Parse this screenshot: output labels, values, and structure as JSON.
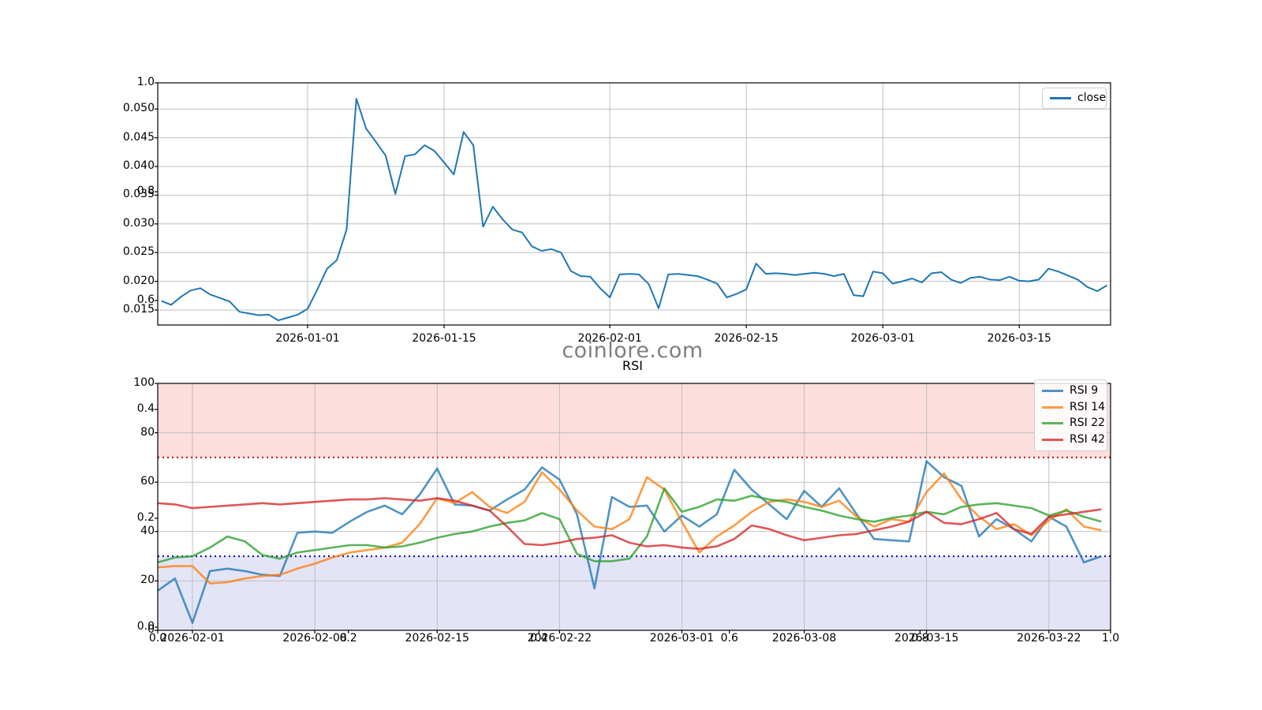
{
  "watermark": "coinlore.com",
  "grid_color": "#bfbfbf",
  "frame_color": "#000000",
  "overlay_axis": {
    "x_tick_labels": [
      "0.0",
      "0.2",
      "0.4",
      "0.6",
      "0.8",
      "1.0"
    ],
    "y_tick_labels": [
      "1.0",
      "0.8",
      "0.6",
      "0.4",
      "0.2",
      "0.0"
    ]
  },
  "chart_data": [
    {
      "type": "line",
      "name": "price",
      "title": "",
      "legend_position": "upper right",
      "grid": true,
      "ylim": [
        0.0124,
        0.0546
      ],
      "y_tick_labels": [
        "0.015",
        "0.020",
        "0.025",
        "0.030",
        "0.035",
        "0.040",
        "0.045",
        "0.050"
      ],
      "x_tick_labels": [
        "2026-01-01",
        "2026-01-15",
        "2026-02-01",
        "2026-02-15",
        "2026-03-01",
        "2026-03-15"
      ],
      "series": [
        {
          "name": "close",
          "color": "#1f77b4",
          "start_date": "2025-12-17",
          "freq": "daily",
          "values": [
            0.0166,
            0.0159,
            0.0173,
            0.0184,
            0.0188,
            0.0177,
            0.0171,
            0.0165,
            0.0147,
            0.0144,
            0.0141,
            0.0142,
            0.0132,
            0.0137,
            0.0142,
            0.0152,
            0.0186,
            0.0222,
            0.0237,
            0.029,
            0.0518,
            0.0466,
            0.0443,
            0.0419,
            0.0352,
            0.0418,
            0.0421,
            0.0437,
            0.0427,
            0.0407,
            0.0386,
            0.046,
            0.0437,
            0.0295,
            0.033,
            0.0308,
            0.029,
            0.0285,
            0.0261,
            0.0253,
            0.0256,
            0.025,
            0.0218,
            0.0209,
            0.0208,
            0.0188,
            0.0172,
            0.0212,
            0.0213,
            0.0212,
            0.0195,
            0.0153,
            0.0212,
            0.0213,
            0.0211,
            0.0209,
            0.0203,
            0.0196,
            0.0172,
            0.0178,
            0.0186,
            0.0231,
            0.0213,
            0.0214,
            0.0213,
            0.0211,
            0.0213,
            0.0215,
            0.0213,
            0.0209,
            0.0213,
            0.0176,
            0.0174,
            0.0217,
            0.0214,
            0.0196,
            0.02,
            0.0205,
            0.0198,
            0.0214,
            0.0216,
            0.0203,
            0.0197,
            0.0206,
            0.0208,
            0.0203,
            0.0202,
            0.0208,
            0.0201,
            0.02,
            0.0203,
            0.0222,
            0.0217,
            0.021,
            0.0203,
            0.019,
            0.0183,
            0.0193
          ]
        }
      ]
    },
    {
      "type": "line",
      "name": "rsi",
      "title": "RSI",
      "legend_position": "upper right",
      "grid": true,
      "ylim": [
        0,
        100
      ],
      "y_tick_labels": [
        "0",
        "20",
        "40",
        "60",
        "80",
        "100"
      ],
      "x_tick_labels": [
        "2026-02-01",
        "2026-02-08",
        "2026-02-15",
        "2026-02-22",
        "2026-03-01",
        "2026-03-08",
        "2026-03-15",
        "2026-03-22"
      ],
      "overbought_level": 70,
      "oversold_level": 30,
      "overbought_band_color": "#fcdede",
      "oversold_band_color": "#e4e4f7",
      "overbought_line_color": "#cc0000",
      "oversold_line_color": "#0000b4",
      "series": [
        {
          "name": "RSI 9",
          "color": "rgba(31,119,180,0.78)",
          "start_date": "2026-01-30",
          "freq": "daily",
          "values": [
            16,
            21,
            3,
            24,
            25,
            24,
            22.5,
            22,
            39.5,
            40,
            39.5,
            44,
            48,
            50.5,
            47,
            55,
            65.5,
            51,
            50.5,
            48.5,
            53,
            57,
            66,
            61,
            47,
            17,
            54,
            50,
            50.5,
            40,
            46.5,
            42,
            47,
            65,
            57,
            51,
            45,
            56.5,
            50,
            57.5,
            47,
            37,
            36.5,
            36,
            68.5,
            62,
            58.5,
            38,
            45,
            41,
            36,
            46,
            42,
            27.5,
            30
          ]
        },
        {
          "name": "RSI 14",
          "color": "rgba(255,127,14,0.78)",
          "start_date": "2026-01-30",
          "freq": "daily",
          "values": [
            25.5,
            26,
            26,
            19,
            19.5,
            21,
            22,
            22.5,
            25,
            27,
            29.5,
            31.5,
            32.5,
            33.5,
            35.5,
            43,
            53.5,
            51.5,
            56,
            50,
            47.5,
            52,
            64,
            57,
            48.5,
            42,
            41,
            45,
            62,
            57,
            44,
            31.5,
            38,
            42.5,
            48,
            52,
            53,
            52,
            50,
            52.5,
            46,
            42,
            45,
            44,
            56,
            63.5,
            53,
            46,
            41,
            43,
            38.5,
            44.5,
            49,
            42,
            40.5
          ]
        },
        {
          "name": "RSI 22",
          "color": "rgba(44,160,44,0.78)",
          "start_date": "2026-01-30",
          "freq": "daily",
          "values": [
            27.5,
            29.5,
            30,
            33.5,
            38,
            36,
            30.5,
            29,
            31.5,
            32.5,
            33.5,
            34.5,
            34.5,
            33.5,
            34,
            35.5,
            37.5,
            39,
            40,
            42,
            43.5,
            44.5,
            47.5,
            45,
            31,
            28,
            28,
            29,
            38,
            57.5,
            48,
            50,
            53,
            52.5,
            54.5,
            53,
            52,
            50,
            48.5,
            46.5,
            45,
            44,
            45.5,
            46.5,
            48,
            47,
            50,
            51,
            51.5,
            50.5,
            49.5,
            46.5,
            48.5,
            46,
            44
          ]
        },
        {
          "name": "RSI 42",
          "color": "rgba(214,39,40,0.78)",
          "start_date": "2026-01-30",
          "freq": "daily",
          "values": [
            51.5,
            51,
            49.5,
            50,
            50.5,
            51,
            51.5,
            51,
            51.5,
            52,
            52.5,
            53,
            53,
            53.5,
            53,
            52.5,
            53.5,
            52.5,
            50.5,
            48.5,
            42,
            35,
            34.5,
            35.5,
            37,
            37.5,
            38.5,
            35.5,
            34,
            34.5,
            33.5,
            33,
            34,
            37,
            42.5,
            41,
            38.5,
            36.5,
            37.5,
            38.5,
            39,
            40.5,
            42,
            44,
            48,
            43.5,
            43,
            45,
            47.5,
            41,
            39,
            46,
            47,
            48,
            49
          ]
        }
      ]
    }
  ]
}
